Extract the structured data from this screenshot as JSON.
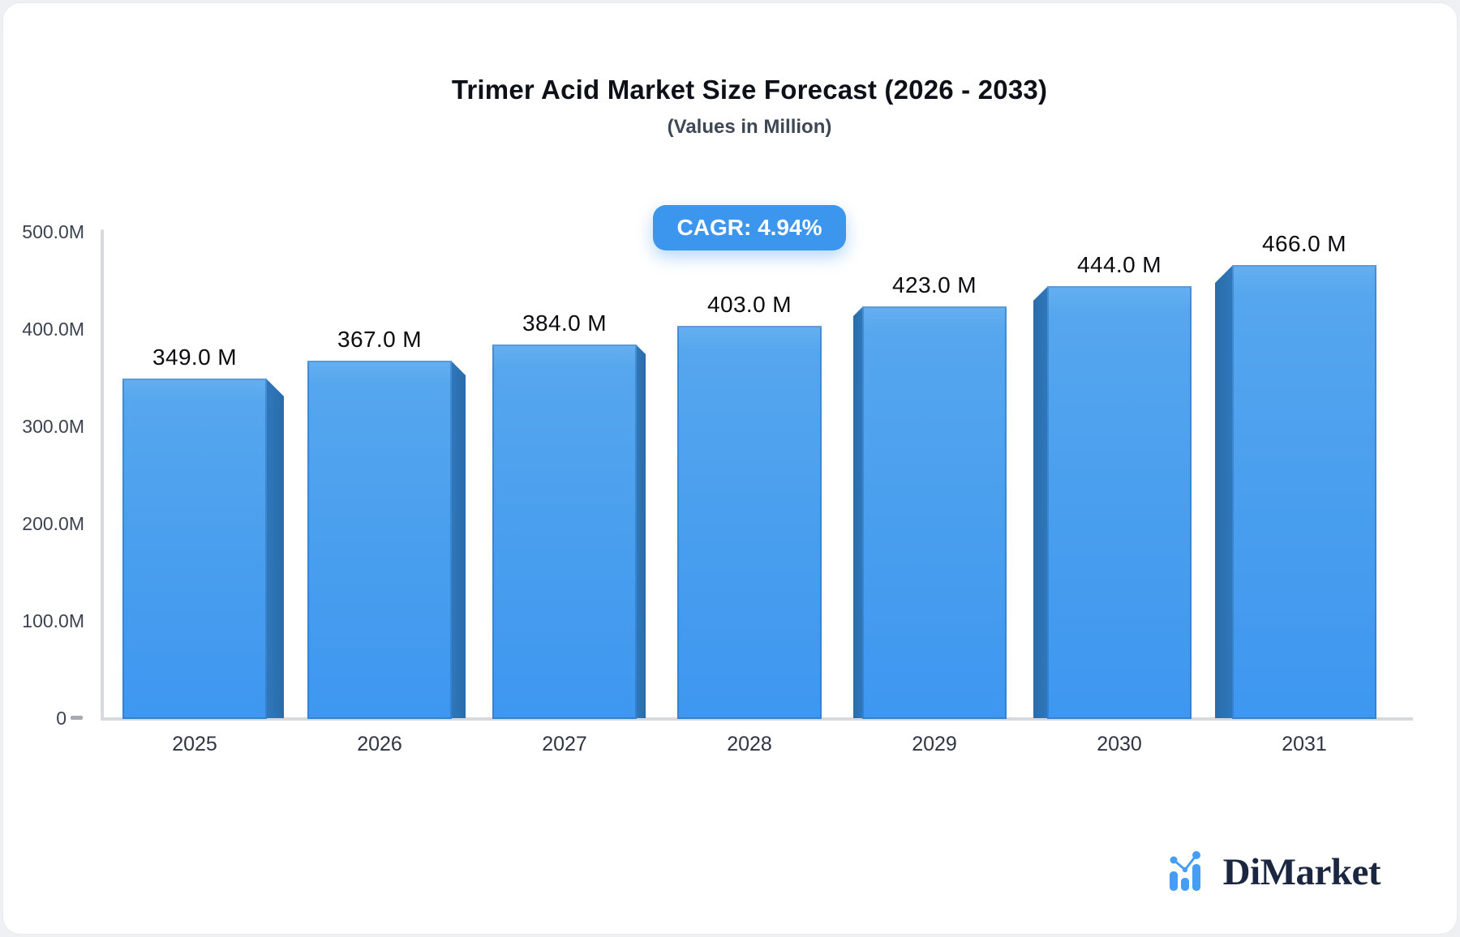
{
  "header": {
    "title": "Trimer Acid Market Size Forecast (2026 - 2033)",
    "subtitle": "(Values in Million)",
    "cagr_badge": "CAGR: 4.94%"
  },
  "chart_data": {
    "type": "bar",
    "title": "Trimer Acid Market Size Forecast (2026 - 2033)",
    "subtitle": "(Values in Million)",
    "unit": "Million (M)",
    "cagr": "CAGR: 4.94%",
    "categories": [
      "2025",
      "2026",
      "2027",
      "2028",
      "2029",
      "2030",
      "2031"
    ],
    "values": [
      349,
      367,
      384,
      403,
      423,
      444,
      466
    ],
    "value_labels": [
      "349.0 M",
      "367.0 M",
      "384.0 M",
      "403.0 M",
      "423.0 M",
      "444.0 M",
      "466.0 M"
    ],
    "y_ticks": [
      {
        "label": "500.0M",
        "value": 500
      },
      {
        "label": "400.0M",
        "value": 400
      },
      {
        "label": "300.0M",
        "value": 300
      },
      {
        "label": "200.0M",
        "value": 200
      },
      {
        "label": "100.0M",
        "value": 100
      },
      {
        "label": "0",
        "value": 0
      }
    ],
    "ylim": [
      0,
      500
    ],
    "grid": false,
    "legend": false,
    "colors": {
      "bar_top": "#64aff0",
      "bar_bottom": "#3e97f0",
      "bar_side": "#2d73b4",
      "axis": "#d8d9de",
      "badge": "#3d96ee",
      "value_label": "#0a0c0f",
      "tick_label": "#3c4350"
    }
  },
  "footer": {
    "logo_text": "DiMarket",
    "logo_icon": "bars-trend-icon",
    "logo_icon_color": "#459ef3",
    "logo_text_color": "#1b2740"
  }
}
